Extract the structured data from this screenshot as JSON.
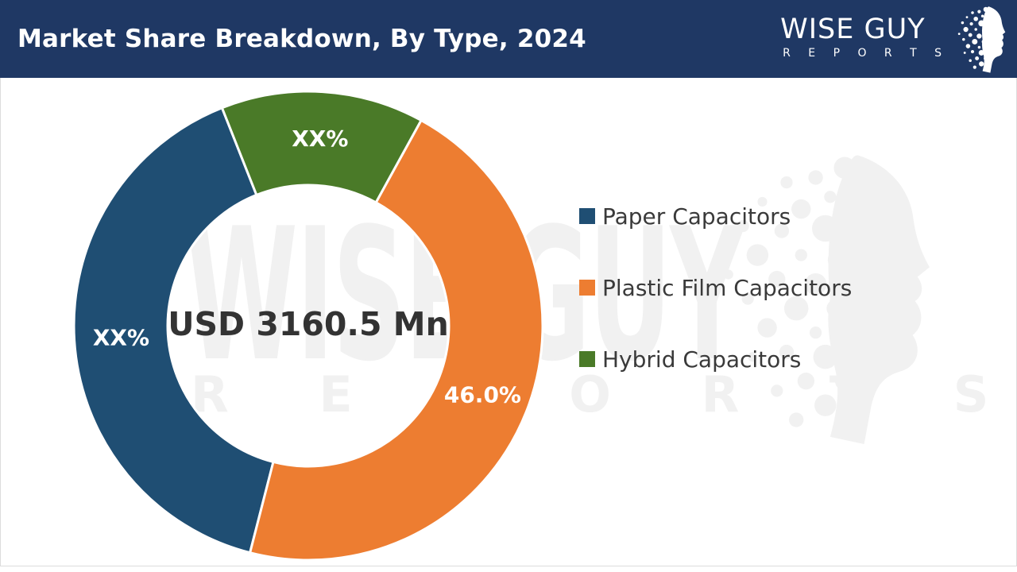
{
  "header": {
    "title": "Market Share Breakdown, By Type, 2024",
    "logo": {
      "wordmark": "WISE GUY",
      "subtext": "R E P O R T S"
    }
  },
  "watermark": {
    "line1": "WISE GUY",
    "line2": "R E P O R T S"
  },
  "chart_data": {
    "type": "donut",
    "title": "Market Share Breakdown, By Type, 2024",
    "center_label": "USD 3160.5 Mn",
    "start_angle_deg": 194.4,
    "draw_order": [
      0,
      2,
      1
    ],
    "outer_radius_px": 295,
    "inner_radius_ratio": 0.6,
    "label_radius_px": 236,
    "legend_position": "right",
    "slices": [
      {
        "name": "Paper Capacitors",
        "value_pct": 40,
        "display_label": "XX%",
        "color": "#1F4E73"
      },
      {
        "name": "Plastic Film Capacitors",
        "value_pct": 46,
        "display_label": "46.0%",
        "color": "#ED7D31"
      },
      {
        "name": "Hybrid Capacitors",
        "value_pct": 14,
        "display_label": "XX%",
        "color": "#4A7A28"
      }
    ]
  },
  "colors": {
    "header_bg": "#1F3864",
    "page_bg": "#FFFFFF",
    "watermark": "#F1F1F1",
    "slice_gap": "#FFFFFF",
    "center_text": "#333333",
    "legend_text": "#3A3A3A",
    "frame_border": "#DCDCDC"
  }
}
